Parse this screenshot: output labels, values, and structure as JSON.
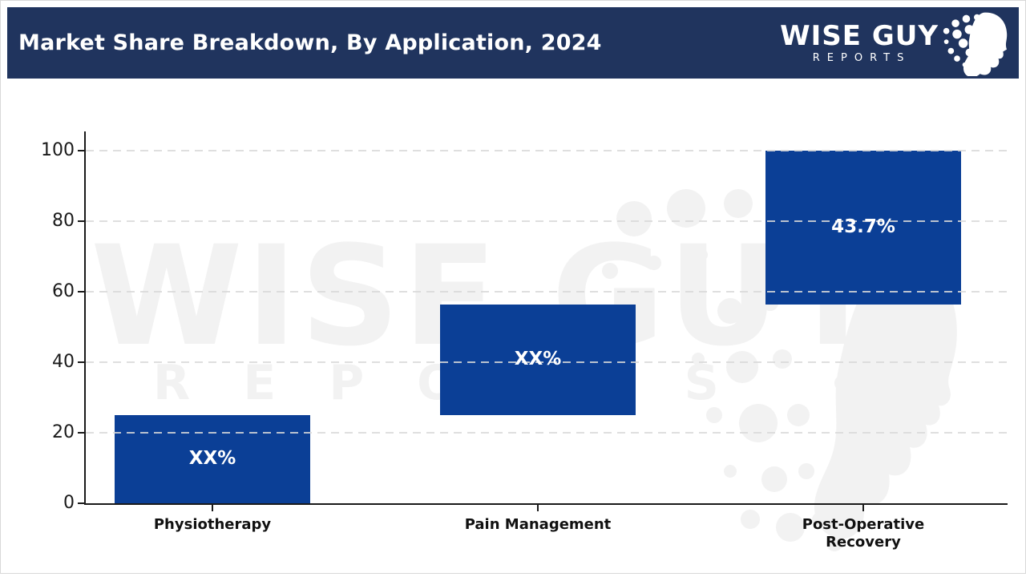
{
  "header": {
    "title": "Market Share Breakdown, By Application, 2024",
    "bg_color": "#20345e",
    "logo": {
      "wordmark": "WISE GUY",
      "subtext": "REPORTS"
    }
  },
  "watermark": {
    "wordmark": "WISE GUY",
    "subtext": "REPORTS"
  },
  "chart_data": {
    "type": "bar",
    "subtype": "floating-waterfall",
    "title": "Market Share Breakdown, By Application, 2024",
    "xlabel": "",
    "ylabel": "",
    "categories": [
      "Physiotherapy",
      "Pain Management",
      "Post-Operative Recovery"
    ],
    "bars": [
      {
        "category": "Physiotherapy",
        "start": 0,
        "end": 25.1,
        "label": "XX%"
      },
      {
        "category": "Pain Management",
        "start": 25.1,
        "end": 56.3,
        "label": "XX%"
      },
      {
        "category": "Post-Operative Recovery",
        "start": 56.3,
        "end": 100,
        "label": "43.7%"
      }
    ],
    "yticks": [
      0,
      20,
      40,
      60,
      80,
      100
    ],
    "ylim": [
      0,
      100
    ],
    "grid": true,
    "gridline_style": "dashed",
    "bar_color": "#0b3f96",
    "gridline_color": "#d9d9d9",
    "axis_color": "#1a1a1a",
    "label_color_inside_bar": "#ffffff"
  }
}
